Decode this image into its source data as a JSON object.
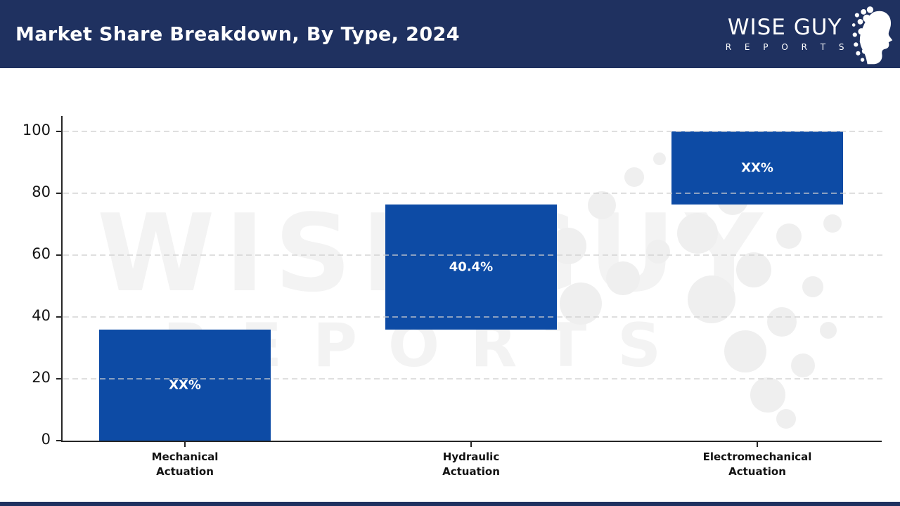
{
  "header": {
    "title": "Market Share Breakdown, By Type, 2024",
    "logo": {
      "line1": "WISE GUY",
      "line2": "R E P O R T S"
    }
  },
  "watermark": {
    "line1": "WISE GUY",
    "line2": "REPORTS"
  },
  "colors": {
    "header_bg": "#1f3160",
    "bar": "#0d4ba5",
    "axis": "#262626",
    "gridline": "#d4d4d4",
    "bar_label": "#ffffff",
    "watermark": "#f3f3f3"
  },
  "chart_data": {
    "type": "bar",
    "variant": "waterfall",
    "title": "Market Share Breakdown, By Type, 2024",
    "categories": [
      [
        "Mechanical",
        "Actuation"
      ],
      [
        "Hydraulic",
        "Actuation"
      ],
      [
        "Electromechanical",
        "Actuation"
      ]
    ],
    "bars": [
      {
        "start": 0,
        "end": 36,
        "label": "XX%"
      },
      {
        "start": 36,
        "end": 76.4,
        "label": "40.4%"
      },
      {
        "start": 76.4,
        "end": 100,
        "label": "XX%"
      }
    ],
    "xlabel": "",
    "ylabel": "",
    "ylim": [
      0,
      100
    ],
    "yticks": [
      0,
      20,
      40,
      60,
      80,
      100
    ],
    "grid": "horizontal-dashed-over-bars",
    "legend": "none"
  }
}
